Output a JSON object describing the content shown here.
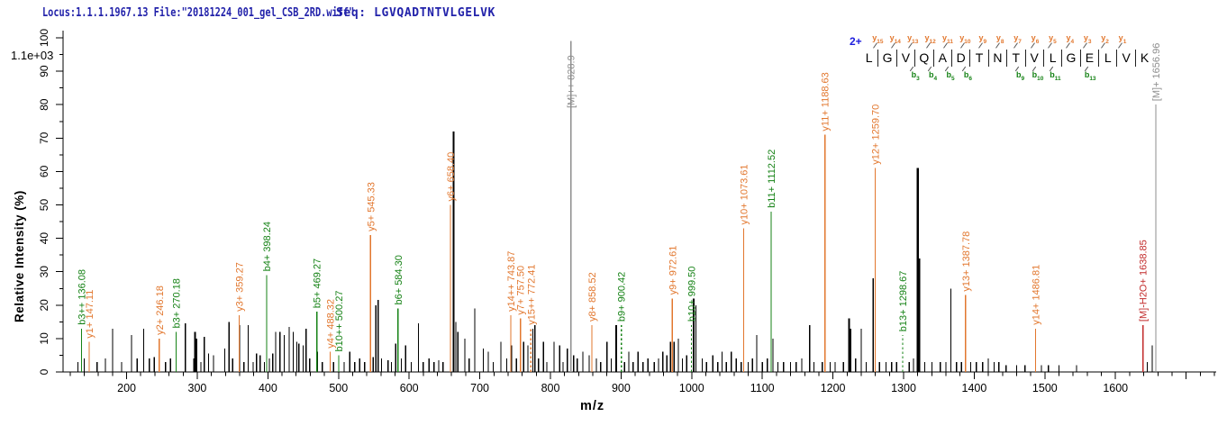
{
  "header": {
    "locus_text": "Locus:1.1.1.1967.13 File:\"20181224_001_gel_CSB_2RD.wiff\"",
    "seq_text": "Seq: LGVQADTNTVLGELVK",
    "scale_note": "1.1e+03"
  },
  "colors": {
    "y_ion": "#E2772E",
    "b_ion": "#158215",
    "precursor": "#8E8E8E",
    "neutral_loss": "#C22B2B",
    "peak": "#000000",
    "header_blue": "#2222AA",
    "charge_blue": "#1C1CDD"
  },
  "sequence_panel": {
    "charge_label": "2+",
    "residues": [
      "L",
      "G",
      "V",
      "Q",
      "A",
      "D",
      "T",
      "N",
      "T",
      "V",
      "L",
      "G",
      "E",
      "L",
      "V",
      "K"
    ],
    "y_ion_labels": [
      "y15",
      "y14",
      "y13",
      "y12",
      "y11",
      "y10",
      "y9",
      "y8",
      "y7",
      "y6",
      "y5",
      "y4",
      "y3",
      "y2",
      "y1"
    ],
    "b_ion_labels": [
      {
        "label": "b3",
        "after_residue": 3
      },
      {
        "label": "b4",
        "after_residue": 4
      },
      {
        "label": "b5",
        "after_residue": 5
      },
      {
        "label": "b6",
        "after_residue": 6
      },
      {
        "label": "b9",
        "after_residue": 9
      },
      {
        "label": "b10",
        "after_residue": 10
      },
      {
        "label": "b11",
        "after_residue": 11
      },
      {
        "label": "b13",
        "after_residue": 13
      }
    ]
  },
  "chart_data": {
    "type": "bar",
    "subtype": "ms2-centroid-spectrum",
    "title": "",
    "xlabel": "m/z",
    "ylabel": "Relative  Intensity (%)",
    "xlim": [
      110,
      1740
    ],
    "ylim": [
      0,
      100
    ],
    "x_major_ticks": [
      200,
      300,
      400,
      500,
      600,
      700,
      800,
      900,
      1000,
      1100,
      1200,
      1300,
      1400,
      1500,
      1600
    ],
    "x_minor_step": 20,
    "y_major_ticks": [
      0,
      10,
      20,
      30,
      40,
      50,
      60,
      70,
      80,
      90,
      100
    ],
    "y_minor_step": 5,
    "grid": false,
    "legend": "none",
    "absolute_intensity_scale": "1.1e+03",
    "labeled_peaks": [
      {
        "label": "b3++ 136.08",
        "ion": "b3++",
        "mz": 136.08,
        "intensity": 13,
        "type": "b"
      },
      {
        "label": "y1+ 147.11",
        "ion": "y1+",
        "mz": 147.11,
        "intensity": 9,
        "type": "y"
      },
      {
        "label": "y2+ 246.18",
        "ion": "y2+",
        "mz": 246.18,
        "intensity": 10,
        "type": "y"
      },
      {
        "label": "b3+ 270.18",
        "ion": "b3+",
        "mz": 270.18,
        "intensity": 12,
        "type": "b"
      },
      {
        "label": "y3+ 359.27",
        "ion": "y3+",
        "mz": 359.27,
        "intensity": 17,
        "type": "y"
      },
      {
        "label": "b4+ 398.24",
        "ion": "b4+",
        "mz": 398.24,
        "intensity": 29,
        "type": "b"
      },
      {
        "label": "b5+ 469.27",
        "ion": "b5+",
        "mz": 469.27,
        "intensity": 18,
        "type": "b"
      },
      {
        "label": "y4+ 488.32",
        "ion": "y4+",
        "mz": 488.32,
        "intensity": 6,
        "type": "y"
      },
      {
        "label": "b10++ 500.27",
        "ion": "b10++",
        "mz": 500.27,
        "intensity": 5,
        "type": "b"
      },
      {
        "label": "y5+ 545.33",
        "ion": "y5+",
        "mz": 545.33,
        "intensity": 41,
        "type": "y"
      },
      {
        "label": "b6+ 584.30",
        "ion": "b6+",
        "mz": 584.3,
        "intensity": 19,
        "type": "b"
      },
      {
        "label": "y6+ 658.40",
        "ion": "y6+",
        "mz": 658.4,
        "intensity": 50,
        "type": "y"
      },
      {
        "label": "y14++ 743.87",
        "ion": "y14++",
        "mz": 743.87,
        "intensity": 17,
        "type": "y"
      },
      {
        "label": "y7+ 757.50",
        "ion": "y7+",
        "mz": 757.5,
        "intensity": 16,
        "type": "y"
      },
      {
        "label": "y15++ 772.41",
        "ion": "y15++",
        "mz": 772.41,
        "intensity": 13,
        "type": "y",
        "dashed": true
      },
      {
        "label": "[M]++ 828.9",
        "ion": "[M]++",
        "mz": 828.9,
        "intensity": 99,
        "type": "precursor",
        "label_y": 120
      },
      {
        "label": "y8+ 858.52",
        "ion": "y8+",
        "mz": 858.52,
        "intensity": 14,
        "type": "y"
      },
      {
        "label": "b9+ 900.42",
        "ion": "b9+",
        "mz": 900.42,
        "intensity": 14,
        "type": "b",
        "dashed": true
      },
      {
        "label": "y9+ 972.61",
        "ion": "y9+",
        "mz": 972.61,
        "intensity": 22,
        "type": "y"
      },
      {
        "label": "b10+ 999.50",
        "ion": "b10+",
        "mz": 999.5,
        "intensity": 14,
        "type": "b",
        "dashed": true
      },
      {
        "label": "y10+ 1073.61",
        "ion": "y10+",
        "mz": 1073.61,
        "intensity": 43,
        "type": "y"
      },
      {
        "label": "b11+ 1112.52",
        "ion": "b11+",
        "mz": 1112.52,
        "intensity": 48,
        "type": "b"
      },
      {
        "label": "y11+ 1188.63",
        "ion": "y11+",
        "mz": 1188.63,
        "intensity": 71,
        "type": "y"
      },
      {
        "label": "y12+ 1259.70",
        "ion": "y12+",
        "mz": 1259.7,
        "intensity": 61,
        "type": "y"
      },
      {
        "label": "b13+ 1298.67",
        "ion": "b13+",
        "mz": 1298.67,
        "intensity": 11,
        "type": "b",
        "dashed": true
      },
      {
        "label": "y13+ 1387.78",
        "ion": "y13+",
        "mz": 1387.78,
        "intensity": 23,
        "type": "y"
      },
      {
        "label": "y14+ 1486.81",
        "ion": "y14+",
        "mz": 1486.81,
        "intensity": 13,
        "type": "y"
      },
      {
        "label": "[M]-H2O+ 1638.85",
        "ion": "[M]-H2O+",
        "mz": 1638.85,
        "intensity": 14,
        "type": "neutral_loss"
      },
      {
        "label": "[M]+ 1656.96",
        "ion": "[M]+",
        "mz": 1656.96,
        "intensity": 80,
        "type": "precursor"
      }
    ],
    "unlabeled_peaks": [
      [
        131,
        3
      ],
      [
        140,
        4
      ],
      [
        158,
        3
      ],
      [
        170,
        4
      ],
      [
        180,
        13
      ],
      [
        193,
        3
      ],
      [
        207,
        11
      ],
      [
        215,
        4
      ],
      [
        224,
        13
      ],
      [
        232,
        4
      ],
      [
        239,
        4.5
      ],
      [
        255,
        3
      ],
      [
        262,
        4
      ],
      [
        283,
        14.5
      ],
      [
        295,
        4
      ],
      [
        297,
        12,
        2
      ],
      [
        299,
        10
      ],
      [
        305,
        3
      ],
      [
        310,
        10.5
      ],
      [
        316,
        5.5
      ],
      [
        323,
        5
      ],
      [
        339,
        7
      ],
      [
        345,
        15
      ],
      [
        350,
        4
      ],
      [
        360,
        14
      ],
      [
        366,
        3
      ],
      [
        372,
        14
      ],
      [
        379,
        3
      ],
      [
        384,
        5.5
      ],
      [
        389,
        5
      ],
      [
        395,
        3
      ],
      [
        402,
        4
      ],
      [
        407,
        5.5
      ],
      [
        411,
        12
      ],
      [
        417,
        12
      ],
      [
        423,
        11
      ],
      [
        430,
        13.5
      ],
      [
        436,
        12
      ],
      [
        441,
        9
      ],
      [
        444,
        8.5
      ],
      [
        450,
        8
      ],
      [
        454,
        13
      ],
      [
        459,
        4
      ],
      [
        470,
        6
      ],
      [
        477,
        3
      ],
      [
        493,
        3
      ],
      [
        508,
        3
      ],
      [
        516,
        6
      ],
      [
        523,
        3
      ],
      [
        530,
        4
      ],
      [
        537,
        3
      ],
      [
        549,
        4.5
      ],
      [
        553,
        20
      ],
      [
        556,
        21.5
      ],
      [
        561,
        4
      ],
      [
        570,
        3.5
      ],
      [
        575,
        3
      ],
      [
        581,
        8.5
      ],
      [
        589,
        4
      ],
      [
        595,
        8
      ],
      [
        603,
        3
      ],
      [
        613,
        14.5
      ],
      [
        620,
        3
      ],
      [
        628,
        4
      ],
      [
        635,
        3
      ],
      [
        642,
        3.5
      ],
      [
        648,
        3
      ],
      [
        663,
        72,
        2
      ],
      [
        666,
        15
      ],
      [
        669,
        12
      ],
      [
        679,
        10
      ],
      [
        685,
        4
      ],
      [
        693,
        19
      ],
      [
        705,
        7
      ],
      [
        712,
        6
      ],
      [
        719,
        3
      ],
      [
        730,
        9
      ],
      [
        738,
        4
      ],
      [
        745,
        8
      ],
      [
        752,
        4
      ],
      [
        762,
        9
      ],
      [
        768,
        8
      ],
      [
        775,
        13
      ],
      [
        778,
        14
      ],
      [
        783,
        4
      ],
      [
        790,
        9
      ],
      [
        795,
        3
      ],
      [
        805,
        9
      ],
      [
        813,
        8
      ],
      [
        818,
        3
      ],
      [
        824,
        7
      ],
      [
        833,
        5
      ],
      [
        838,
        4
      ],
      [
        846,
        6
      ],
      [
        855,
        5
      ],
      [
        865,
        4
      ],
      [
        871,
        3
      ],
      [
        880,
        9
      ],
      [
        886,
        4
      ],
      [
        893,
        14,
        2
      ],
      [
        905,
        3
      ],
      [
        911,
        6
      ],
      [
        917,
        3
      ],
      [
        924,
        6
      ],
      [
        931,
        3
      ],
      [
        938,
        4
      ],
      [
        947,
        3
      ],
      [
        953,
        4
      ],
      [
        959,
        6
      ],
      [
        965,
        5
      ],
      [
        970,
        9
      ],
      [
        975,
        9
      ],
      [
        981,
        10
      ],
      [
        987,
        4
      ],
      [
        993,
        5
      ],
      [
        1003,
        22,
        2
      ],
      [
        1006,
        20
      ],
      [
        1015,
        4
      ],
      [
        1021,
        3
      ],
      [
        1030,
        5
      ],
      [
        1037,
        3
      ],
      [
        1043,
        6
      ],
      [
        1049,
        3
      ],
      [
        1056,
        6
      ],
      [
        1063,
        4
      ],
      [
        1070,
        3
      ],
      [
        1080,
        3
      ],
      [
        1086,
        4
      ],
      [
        1092,
        11
      ],
      [
        1100,
        3
      ],
      [
        1107,
        4
      ],
      [
        1115,
        10
      ],
      [
        1122,
        3
      ],
      [
        1130,
        3
      ],
      [
        1140,
        3
      ],
      [
        1148,
        3
      ],
      [
        1156,
        4
      ],
      [
        1167,
        14
      ],
      [
        1173,
        3
      ],
      [
        1185,
        3
      ],
      [
        1196,
        3
      ],
      [
        1203,
        3
      ],
      [
        1215,
        3
      ],
      [
        1223,
        16,
        2
      ],
      [
        1225,
        13
      ],
      [
        1232,
        4
      ],
      [
        1240,
        13
      ],
      [
        1247,
        3
      ],
      [
        1257,
        28
      ],
      [
        1266,
        3
      ],
      [
        1275,
        3
      ],
      [
        1283,
        3
      ],
      [
        1290,
        3
      ],
      [
        1308,
        3
      ],
      [
        1314,
        4
      ],
      [
        1320,
        61,
        2.5
      ],
      [
        1322,
        34,
        2
      ],
      [
        1330,
        3
      ],
      [
        1340,
        3
      ],
      [
        1352,
        3
      ],
      [
        1360,
        3
      ],
      [
        1367,
        25
      ],
      [
        1375,
        3
      ],
      [
        1382,
        3
      ],
      [
        1395,
        3
      ],
      [
        1403,
        3
      ],
      [
        1412,
        3
      ],
      [
        1420,
        4
      ],
      [
        1428,
        3
      ],
      [
        1435,
        3
      ],
      [
        1445,
        2
      ],
      [
        1460,
        2
      ],
      [
        1472,
        2
      ],
      [
        1495,
        2
      ],
      [
        1505,
        2
      ],
      [
        1520,
        2
      ],
      [
        1545,
        2
      ],
      [
        1645,
        3
      ],
      [
        1652,
        8
      ]
    ]
  }
}
